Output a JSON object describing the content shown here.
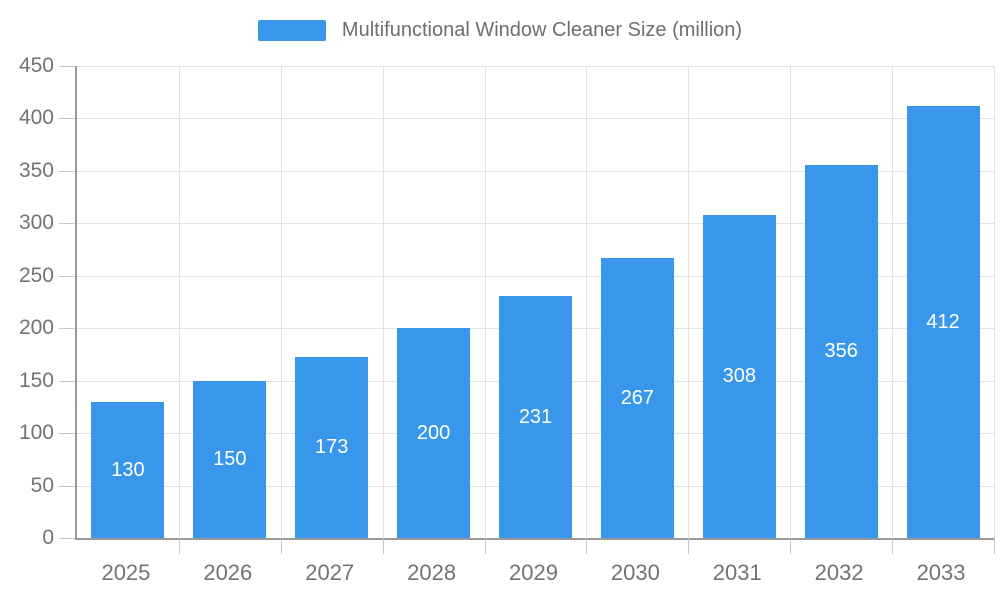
{
  "legend": {
    "items": [
      {
        "label": "Multifunctional Window Cleaner Size (million)",
        "color": "#3897EB"
      }
    ]
  },
  "chart_data": {
    "type": "bar",
    "title": "Multifunctional Window Cleaner Size (million)",
    "categories": [
      "2025",
      "2026",
      "2027",
      "2028",
      "2029",
      "2030",
      "2031",
      "2032",
      "2033"
    ],
    "series": [
      {
        "name": "Multifunctional Window Cleaner Size (million)",
        "color": "#3897EB",
        "values": [
          130,
          150,
          173,
          200,
          231,
          267,
          308,
          356,
          412
        ]
      }
    ],
    "xlabel": "",
    "ylabel": "",
    "ylim": [
      0,
      450
    ],
    "yticks": [
      0,
      50,
      100,
      150,
      200,
      250,
      300,
      350,
      400,
      450
    ],
    "grid": true,
    "legend_position": "top",
    "value_labels": "inside-center",
    "value_label_color": "#FFFFFF",
    "axis_label_color": "#737373",
    "legend_text_color": "#6E6E6E",
    "axis_line_color": "#999999",
    "grid_line_color": "#E3E3E3",
    "tick_color": "#C6C6C6",
    "background": "#FFFFFF"
  }
}
